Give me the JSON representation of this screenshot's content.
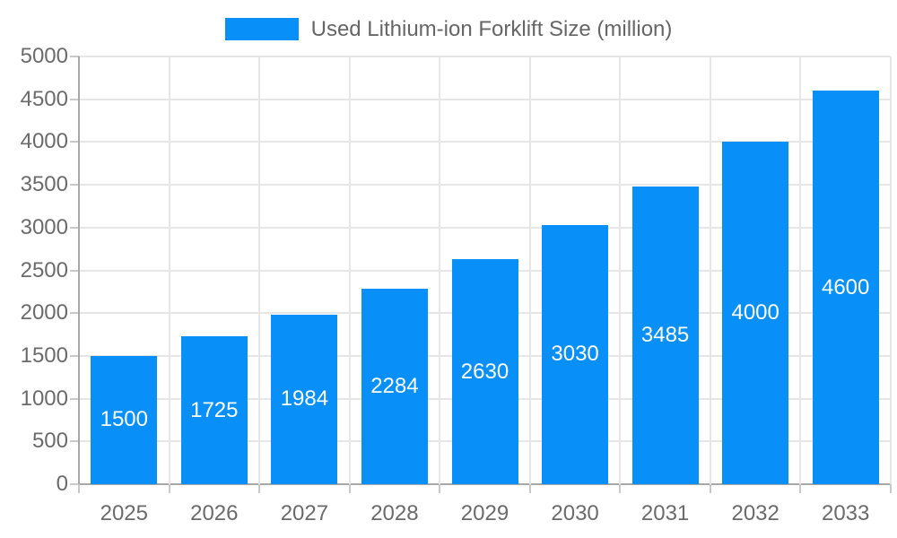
{
  "legend": {
    "label": "Used Lithium-ion Forklift Size (million)"
  },
  "colors": {
    "bar": "#0890f8",
    "grid": "#e6e6e6",
    "axis": "#a8a8a8",
    "tick": "#c9c9c9",
    "text": "#6b6b6b",
    "legend_text": "#666666",
    "bar_label": "#ffffff",
    "background": "#ffffff"
  },
  "chart_data": {
    "type": "bar",
    "title": "Used Lithium-ion Forklift Size (million)",
    "series_name": "Used Lithium-ion Forklift Size (million)",
    "categories": [
      "2025",
      "2026",
      "2027",
      "2028",
      "2029",
      "2030",
      "2031",
      "2032",
      "2033"
    ],
    "values": [
      1500,
      1725,
      1984,
      2284,
      2630,
      3030,
      3485,
      4000,
      4600
    ],
    "xlabel": "",
    "ylabel": "",
    "ylim": [
      0,
      5000
    ],
    "y_tick_step": 500,
    "y_tick_labels": [
      "0",
      "500",
      "1000",
      "1500",
      "2000",
      "2500",
      "3000",
      "3500",
      "4000",
      "4500",
      "5000"
    ],
    "grid": "horizontal and vertical light-gray gridlines",
    "legend_position": "top-center",
    "data_labels_position": "inside-center-white"
  }
}
